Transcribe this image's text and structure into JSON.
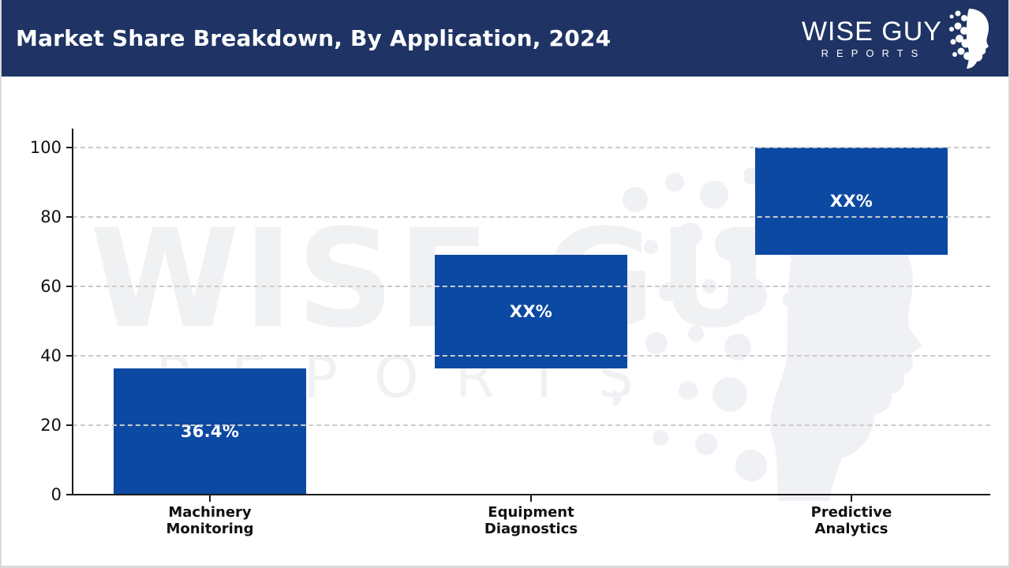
{
  "header": {
    "title": "Market Share Breakdown, By Application, 2024",
    "logo": {
      "brand": "WISE GUY",
      "sub": "REPORTS",
      "icon": "dotted-face-profile"
    }
  },
  "watermark": {
    "line1": "WISE GUY",
    "line2": "REPORTS"
  },
  "chart_data": {
    "type": "bar",
    "subtype": "floating-segment-waterfall",
    "title": "Market Share Breakdown, By Application, 2024",
    "categories": [
      "Machinery Monitoring",
      "Equipment Diagnostics",
      "Predictive Analytics"
    ],
    "bars": [
      {
        "category": "Machinery Monitoring",
        "label_lines": [
          "Machinery",
          "Monitoring"
        ],
        "start": 0,
        "end": 36.4,
        "label": "36.4%"
      },
      {
        "category": "Equipment Diagnostics",
        "label_lines": [
          "Equipment",
          "Diagnostics"
        ],
        "start": 36.4,
        "end": 69.1,
        "label": "XX%"
      },
      {
        "category": "Predictive Analytics",
        "label_lines": [
          "Predictive",
          "Analytics"
        ],
        "start": 69.1,
        "end": 100,
        "label": "XX%"
      }
    ],
    "xlabel": "",
    "ylabel": "",
    "ylim": [
      0,
      100
    ],
    "yticks": [
      0,
      20,
      40,
      60,
      80,
      100
    ],
    "grid": "horizontal-dashed",
    "legend": "none",
    "colors": {
      "bar": "#0c49a3",
      "bar_label": "#ffffff",
      "grid": "#cbcbcb",
      "axis": "#1a1a1a",
      "tick_label": "#111111",
      "header_bg": "#1f3464",
      "header_text": "#ffffff",
      "watermark": "#f0f1f3",
      "background": "#ffffff"
    }
  }
}
